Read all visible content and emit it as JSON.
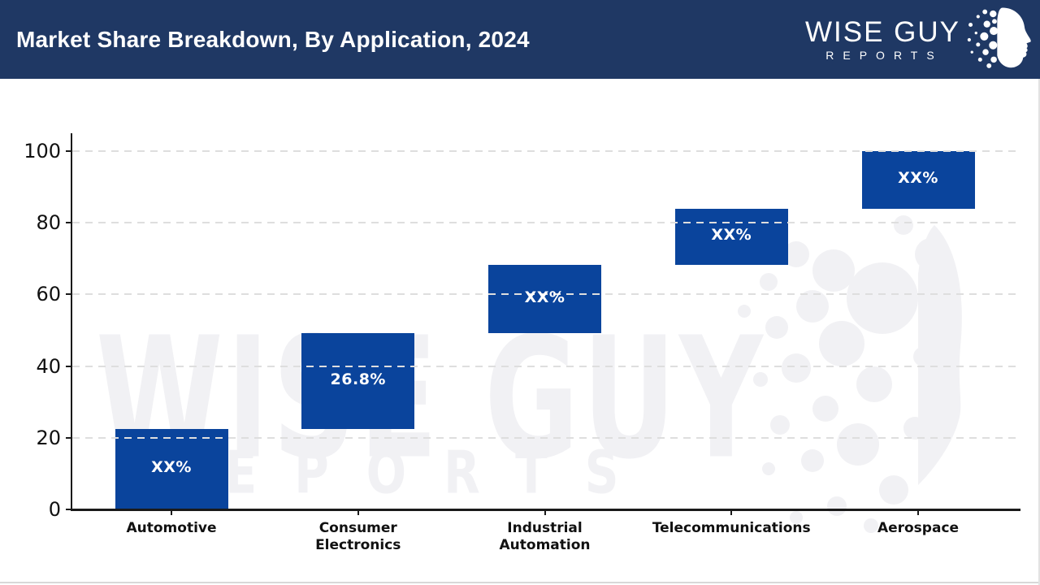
{
  "header": {
    "title": "Market Share Breakdown, By Application, 2024",
    "bg_color": "#1f3864",
    "logo": {
      "wordmark": "WISE GUY",
      "subtext": "REPORTS"
    }
  },
  "watermark": {
    "line1": "WISE GUY",
    "line2": "REPORTS",
    "color": "#f1f1f4"
  },
  "chart_data": {
    "type": "bar",
    "subtype": "waterfall",
    "title": "Market Share Breakdown, By Application, 2024",
    "categories": [
      "Automotive",
      "Consumer Electronics",
      "Industrial Automation",
      "Telecommunications",
      "Aerospace"
    ],
    "tick_lines": [
      [
        "Automotive"
      ],
      [
        "Consumer",
        "Electronics"
      ],
      [
        "Industrial",
        "Automation"
      ],
      [
        "Telecommunications"
      ],
      [
        "Aerospace"
      ]
    ],
    "segments": [
      {
        "category": "Automotive",
        "start": 0,
        "end": 22.5,
        "label": "XX%"
      },
      {
        "category": "Consumer Electronics",
        "start": 22.5,
        "end": 49.3,
        "label": "26.8%"
      },
      {
        "category": "Industrial Automation",
        "start": 49.3,
        "end": 68.3,
        "label": "XX%"
      },
      {
        "category": "Telecommunications",
        "start": 68.3,
        "end": 84.0,
        "label": "XX%"
      },
      {
        "category": "Aerospace",
        "start": 84.0,
        "end": 100.0,
        "label": "XX%"
      }
    ],
    "yticks": [
      0,
      20,
      40,
      60,
      80,
      100
    ],
    "ylim": [
      0,
      105
    ],
    "xlabel": "",
    "ylabel": "",
    "grid": "horizontal-dashed",
    "legend": false,
    "bar_color": "#0a449c",
    "bar_label_color": "#ffffff",
    "axis_color": "#1a1a1a",
    "grid_color": "#dedede"
  }
}
